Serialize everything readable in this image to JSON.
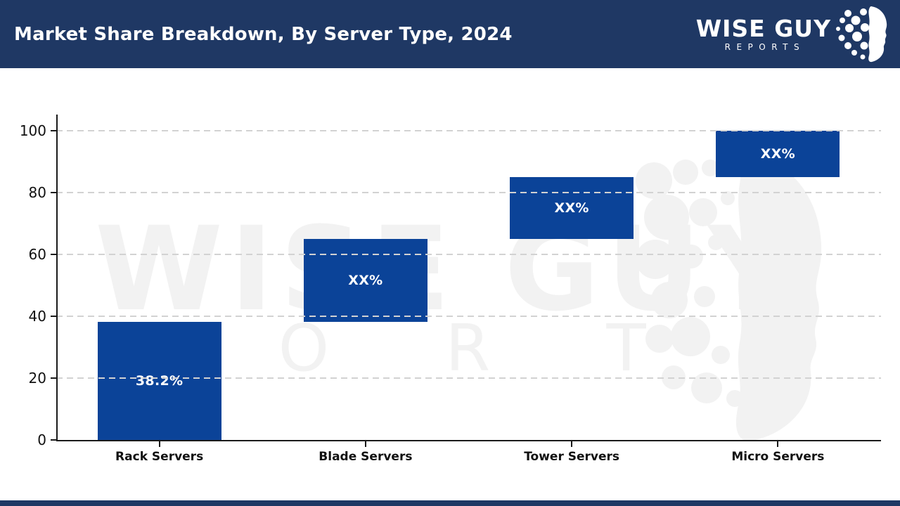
{
  "header": {
    "title": "Market Share Breakdown, By Server Type, 2024",
    "logo": {
      "line1": "WISE GUY",
      "line2": "REPORTS"
    }
  },
  "watermark": {
    "line1": "WISE GUY",
    "line2": "REPORTS"
  },
  "colors": {
    "header_bg": "#1f3864",
    "bar_blue": "#0b4398",
    "gridline": "#d2d2d2",
    "axis": "#1a1a1a",
    "watermark_gray": "#f2f2f2",
    "bar_label_white": "#ffffff"
  },
  "chart_data": {
    "type": "bar",
    "subtype": "waterfall",
    "title": "Market Share Breakdown, By Server Type, 2024",
    "xlabel": "",
    "ylabel": "",
    "categories": [
      "Rack Servers",
      "Blade Servers",
      "Tower Servers",
      "Micro Servers"
    ],
    "segments": [
      {
        "category": "Rack Servers",
        "label": "38.2%",
        "start": 0,
        "end": 38.2
      },
      {
        "category": "Blade Servers",
        "label": "XX%",
        "start": 38.2,
        "end": 65
      },
      {
        "category": "Tower Servers",
        "label": "XX%",
        "start": 65,
        "end": 85
      },
      {
        "category": "Micro Servers",
        "label": "XX%",
        "start": 85,
        "end": 100
      }
    ],
    "yticks": [
      0,
      20,
      40,
      60,
      80,
      100
    ],
    "ylim": [
      0,
      105
    ],
    "grid": "dashed horizontal",
    "legend": "none"
  }
}
